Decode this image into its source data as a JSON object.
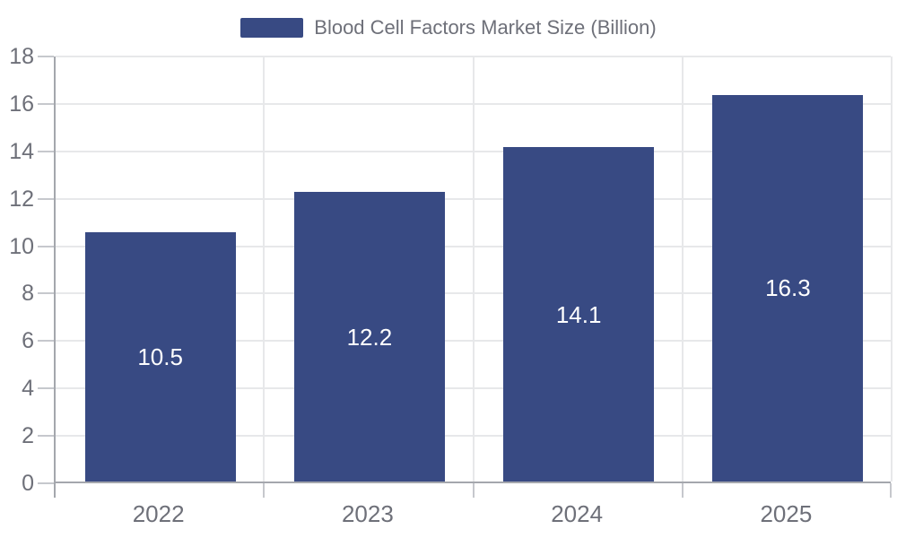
{
  "chart_data": {
    "type": "bar",
    "title": "Blood Cell Factors Market Size (Billion)",
    "legend": {
      "label": "Blood Cell Factors Market Size (Billion)",
      "position": "top"
    },
    "categories": [
      "2022",
      "2023",
      "2024",
      "2025"
    ],
    "values": [
      10.5,
      12.2,
      14.1,
      16.3
    ],
    "value_labels": [
      "10.5",
      "12.2",
      "14.1",
      "16.3"
    ],
    "series": [
      {
        "name": "Blood Cell Factors Market Size (Billion)",
        "values": [
          10.5,
          12.2,
          14.1,
          16.3
        ]
      }
    ],
    "xlabel": "",
    "ylabel": "",
    "ylim": [
      0,
      18
    ],
    "yticks": [
      0,
      2,
      4,
      6,
      8,
      10,
      12,
      14,
      16,
      18
    ],
    "grid": true,
    "colors": {
      "bar": "#384a83",
      "axis_line": "#a4a7ad",
      "grid_line": "#e7e8ea",
      "tick_mark": "#c6c8cd",
      "axis_label": "#6e7079",
      "legend_text": "#6e7079",
      "value_label": "#ffffff",
      "background": "#ffffff"
    }
  }
}
